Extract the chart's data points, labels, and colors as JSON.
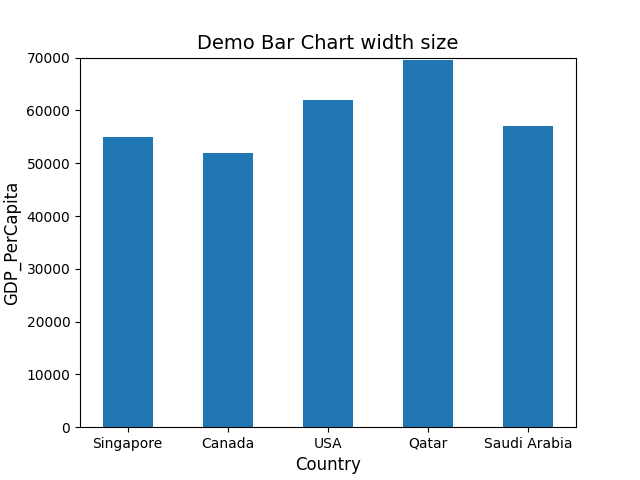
{
  "categories": [
    "Singapore",
    "Canada",
    "USA",
    "Qatar",
    "Saudi Arabia"
  ],
  "values": [
    55000,
    52000,
    62000,
    69500,
    57000
  ],
  "bar_color": "#2077b4",
  "title": "Demo Bar Chart width size",
  "xlabel": "Country",
  "ylabel": "GDP_PerCapita",
  "ylim": [
    0,
    70000
  ],
  "figsize": [
    6.4,
    4.8
  ],
  "dpi": 100,
  "bar_width": 0.5,
  "title_fontsize": 14,
  "label_fontsize": 12
}
